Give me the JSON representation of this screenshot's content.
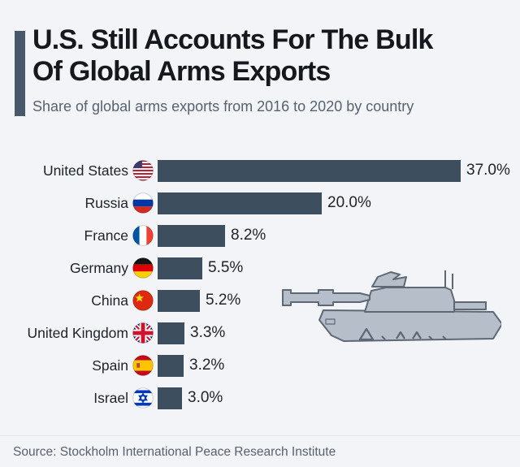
{
  "page": {
    "background_color": "#f2f4f8"
  },
  "header": {
    "accent_color": "#47586a",
    "title_lines": [
      "U.S. Still Accounts For The Bulk",
      "Of Global Arms Exports"
    ],
    "subtitle": "Share of global arms exports from 2016 to 2020 by country"
  },
  "chart_data": {
    "type": "bar",
    "orientation": "horizontal",
    "title": "U.S. Still Accounts For The Bulk Of Global Arms Exports",
    "subtitle": "Share of global arms exports from 2016 to 2020 by country",
    "unit": "percent",
    "xlim": [
      0,
      40
    ],
    "grid": false,
    "legend": false,
    "bar_color": "#3d4e5f",
    "categories": [
      "United States",
      "Russia",
      "France",
      "Germany",
      "China",
      "United Kingdom",
      "Spain",
      "Israel"
    ],
    "values": [
      37.0,
      20.0,
      8.2,
      5.5,
      5.2,
      3.3,
      3.2,
      3.0
    ],
    "rows": [
      {
        "country": "United States",
        "value": 37.0,
        "value_label": "37.0%",
        "flag_icon": "us-flag-icon"
      },
      {
        "country": "Russia",
        "value": 20.0,
        "value_label": "20.0%",
        "flag_icon": "ru-flag-icon"
      },
      {
        "country": "France",
        "value": 8.2,
        "value_label": "8.2%",
        "flag_icon": "fr-flag-icon"
      },
      {
        "country": "Germany",
        "value": 5.5,
        "value_label": "5.5%",
        "flag_icon": "de-flag-icon"
      },
      {
        "country": "China",
        "value": 5.2,
        "value_label": "5.2%",
        "flag_icon": "cn-flag-icon"
      },
      {
        "country": "United Kingdom",
        "value": 3.3,
        "value_label": "3.3%",
        "flag_icon": "gb-flag-icon"
      },
      {
        "country": "Spain",
        "value": 3.2,
        "value_label": "3.2%",
        "flag_icon": "es-flag-icon"
      },
      {
        "country": "Israel",
        "value": 3.0,
        "value_label": "3.0%",
        "flag_icon": "il-flag-icon"
      }
    ]
  },
  "decoration": {
    "tank_icon": "tank-icon",
    "tank_fill": "#b6bfc9",
    "tank_outline": "#5e6874"
  },
  "footer": {
    "source": "Source: Stockholm International Peace Research Institute"
  }
}
